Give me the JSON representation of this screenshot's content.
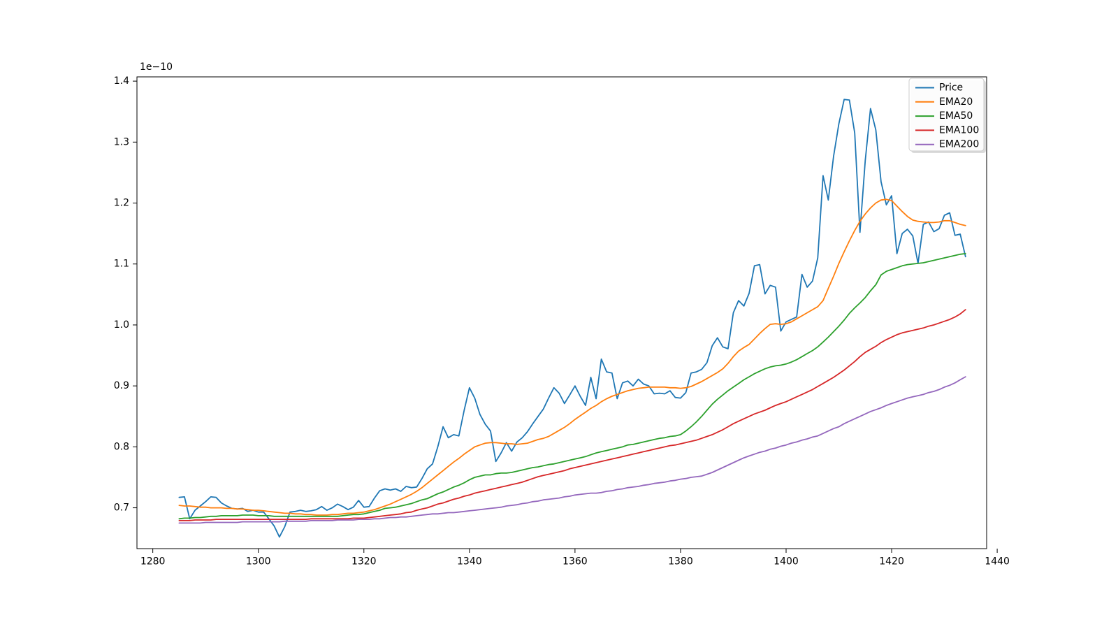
{
  "figure": {
    "background": "#ffffff"
  },
  "chart_data": {
    "type": "line",
    "title": "",
    "xlabel": "",
    "ylabel": "",
    "y_offset_label": "1e−10",
    "grid": false,
    "legend_position": "upper right",
    "legend_labels": [
      "Price",
      "EMA20",
      "EMA50",
      "EMA100",
      "EMA200"
    ],
    "xlim": [
      1277,
      1438
    ],
    "ylim": [
      0.633,
      1.407
    ],
    "x_ticks": [
      1280,
      1300,
      1320,
      1340,
      1360,
      1380,
      1400,
      1420,
      1440
    ],
    "y_ticks": [
      0.7,
      0.8,
      0.9,
      1.0,
      1.1,
      1.2,
      1.3,
      1.4
    ],
    "x": [
      1285,
      1286,
      1287,
      1288,
      1289,
      1290,
      1291,
      1292,
      1293,
      1294,
      1295,
      1296,
      1297,
      1298,
      1299,
      1300,
      1301,
      1302,
      1303,
      1304,
      1305,
      1306,
      1307,
      1308,
      1309,
      1310,
      1311,
      1312,
      1313,
      1314,
      1315,
      1316,
      1317,
      1318,
      1319,
      1320,
      1321,
      1322,
      1323,
      1324,
      1325,
      1326,
      1327,
      1328,
      1329,
      1330,
      1331,
      1332,
      1333,
      1334,
      1335,
      1336,
      1337,
      1338,
      1339,
      1340,
      1341,
      1342,
      1343,
      1344,
      1345,
      1346,
      1347,
      1348,
      1349,
      1350,
      1351,
      1352,
      1353,
      1354,
      1355,
      1356,
      1357,
      1358,
      1359,
      1360,
      1361,
      1362,
      1363,
      1364,
      1365,
      1366,
      1367,
      1368,
      1369,
      1370,
      1371,
      1372,
      1373,
      1374,
      1375,
      1376,
      1377,
      1378,
      1379,
      1380,
      1381,
      1382,
      1383,
      1384,
      1385,
      1386,
      1387,
      1388,
      1389,
      1390,
      1391,
      1392,
      1393,
      1394,
      1395,
      1396,
      1397,
      1398,
      1399,
      1400,
      1401,
      1402,
      1403,
      1404,
      1405,
      1406,
      1407,
      1408,
      1409,
      1410,
      1411,
      1412,
      1413,
      1414,
      1415,
      1416,
      1417,
      1418,
      1419,
      1420,
      1421,
      1422,
      1423,
      1424,
      1425,
      1426,
      1427,
      1428,
      1429,
      1430,
      1431,
      1432,
      1433,
      1434
    ],
    "series": [
      {
        "name": "Price",
        "color": "#1f77b4",
        "values": [
          0.717,
          0.718,
          0.682,
          0.696,
          0.703,
          0.71,
          0.718,
          0.717,
          0.708,
          0.703,
          0.699,
          0.698,
          0.699,
          0.694,
          0.696,
          0.693,
          0.693,
          0.682,
          0.67,
          0.652,
          0.669,
          0.693,
          0.694,
          0.696,
          0.694,
          0.695,
          0.697,
          0.702,
          0.696,
          0.7,
          0.706,
          0.702,
          0.697,
          0.701,
          0.712,
          0.701,
          0.702,
          0.716,
          0.728,
          0.731,
          0.729,
          0.731,
          0.727,
          0.735,
          0.733,
          0.734,
          0.748,
          0.764,
          0.772,
          0.8,
          0.833,
          0.815,
          0.82,
          0.818,
          0.86,
          0.897,
          0.88,
          0.853,
          0.837,
          0.826,
          0.776,
          0.79,
          0.807,
          0.793,
          0.808,
          0.815,
          0.825,
          0.838,
          0.85,
          0.862,
          0.88,
          0.897,
          0.888,
          0.871,
          0.885,
          0.9,
          0.883,
          0.868,
          0.914,
          0.879,
          0.944,
          0.923,
          0.921,
          0.879,
          0.905,
          0.908,
          0.9,
          0.911,
          0.903,
          0.9,
          0.887,
          0.888,
          0.887,
          0.892,
          0.881,
          0.88,
          0.889,
          0.921,
          0.923,
          0.927,
          0.938,
          0.966,
          0.979,
          0.964,
          0.961,
          1.02,
          1.04,
          1.031,
          1.052,
          1.097,
          1.099,
          1.051,
          1.065,
          1.062,
          0.99,
          1.005,
          1.009,
          1.013,
          1.083,
          1.062,
          1.072,
          1.11,
          1.245,
          1.205,
          1.277,
          1.33,
          1.37,
          1.369,
          1.315,
          1.152,
          1.27,
          1.355,
          1.32,
          1.235,
          1.197,
          1.212,
          1.117,
          1.15,
          1.157,
          1.146,
          1.101,
          1.165,
          1.169,
          1.153,
          1.158,
          1.18,
          1.184,
          1.147,
          1.149,
          1.112
        ]
      },
      {
        "name": "EMA20",
        "color": "#ff7f0e",
        "values": [
          0.704,
          0.703,
          0.703,
          0.702,
          0.701,
          0.701,
          0.7,
          0.7,
          0.7,
          0.699,
          0.699,
          0.698,
          0.698,
          0.697,
          0.696,
          0.696,
          0.695,
          0.694,
          0.693,
          0.692,
          0.691,
          0.691,
          0.69,
          0.69,
          0.689,
          0.689,
          0.688,
          0.688,
          0.688,
          0.689,
          0.689,
          0.69,
          0.691,
          0.691,
          0.692,
          0.693,
          0.695,
          0.697,
          0.7,
          0.703,
          0.706,
          0.71,
          0.714,
          0.718,
          0.722,
          0.727,
          0.733,
          0.74,
          0.747,
          0.754,
          0.761,
          0.768,
          0.775,
          0.781,
          0.788,
          0.794,
          0.8,
          0.803,
          0.806,
          0.807,
          0.807,
          0.806,
          0.805,
          0.805,
          0.804,
          0.805,
          0.806,
          0.809,
          0.812,
          0.814,
          0.817,
          0.822,
          0.827,
          0.832,
          0.838,
          0.845,
          0.851,
          0.857,
          0.863,
          0.868,
          0.874,
          0.879,
          0.883,
          0.886,
          0.889,
          0.892,
          0.894,
          0.896,
          0.897,
          0.898,
          0.898,
          0.898,
          0.898,
          0.897,
          0.897,
          0.896,
          0.897,
          0.899,
          0.903,
          0.907,
          0.912,
          0.917,
          0.922,
          0.928,
          0.937,
          0.948,
          0.957,
          0.963,
          0.968,
          0.977,
          0.986,
          0.994,
          1.001,
          1.002,
          1.001,
          1.002,
          1.005,
          1.01,
          1.015,
          1.02,
          1.025,
          1.03,
          1.04,
          1.06,
          1.08,
          1.101,
          1.12,
          1.138,
          1.155,
          1.17,
          1.182,
          1.192,
          1.2,
          1.205,
          1.206,
          1.204,
          1.195,
          1.186,
          1.178,
          1.172,
          1.17,
          1.169,
          1.168,
          1.168,
          1.169,
          1.171,
          1.171,
          1.168,
          1.165,
          1.163
        ]
      },
      {
        "name": "EMA50",
        "color": "#2ca02c",
        "values": [
          0.682,
          0.683,
          0.683,
          0.684,
          0.684,
          0.685,
          0.686,
          0.686,
          0.687,
          0.687,
          0.687,
          0.687,
          0.688,
          0.688,
          0.688,
          0.687,
          0.687,
          0.687,
          0.686,
          0.686,
          0.686,
          0.686,
          0.686,
          0.686,
          0.686,
          0.686,
          0.686,
          0.686,
          0.686,
          0.686,
          0.686,
          0.687,
          0.688,
          0.689,
          0.689,
          0.69,
          0.692,
          0.694,
          0.696,
          0.699,
          0.7,
          0.701,
          0.703,
          0.705,
          0.707,
          0.71,
          0.713,
          0.715,
          0.719,
          0.723,
          0.726,
          0.73,
          0.734,
          0.737,
          0.741,
          0.746,
          0.75,
          0.752,
          0.754,
          0.754,
          0.756,
          0.757,
          0.757,
          0.758,
          0.76,
          0.762,
          0.764,
          0.766,
          0.767,
          0.769,
          0.771,
          0.772,
          0.774,
          0.776,
          0.778,
          0.78,
          0.782,
          0.784,
          0.787,
          0.79,
          0.792,
          0.794,
          0.796,
          0.798,
          0.8,
          0.803,
          0.804,
          0.806,
          0.808,
          0.81,
          0.812,
          0.814,
          0.815,
          0.817,
          0.818,
          0.82,
          0.826,
          0.833,
          0.841,
          0.85,
          0.86,
          0.87,
          0.878,
          0.885,
          0.892,
          0.898,
          0.904,
          0.91,
          0.915,
          0.92,
          0.924,
          0.928,
          0.931,
          0.933,
          0.934,
          0.936,
          0.939,
          0.943,
          0.948,
          0.953,
          0.958,
          0.964,
          0.972,
          0.98,
          0.989,
          0.998,
          1.008,
          1.019,
          1.028,
          1.036,
          1.045,
          1.056,
          1.066,
          1.082,
          1.088,
          1.091,
          1.094,
          1.097,
          1.099,
          1.1,
          1.101,
          1.102,
          1.104,
          1.106,
          1.108,
          1.11,
          1.112,
          1.114,
          1.116,
          1.117
        ]
      },
      {
        "name": "EMA100",
        "color": "#d62728",
        "values": [
          0.679,
          0.679,
          0.679,
          0.68,
          0.68,
          0.68,
          0.68,
          0.681,
          0.681,
          0.681,
          0.681,
          0.681,
          0.681,
          0.681,
          0.681,
          0.681,
          0.681,
          0.681,
          0.681,
          0.681,
          0.681,
          0.681,
          0.681,
          0.681,
          0.681,
          0.682,
          0.682,
          0.682,
          0.682,
          0.682,
          0.682,
          0.682,
          0.682,
          0.683,
          0.683,
          0.683,
          0.684,
          0.685,
          0.686,
          0.687,
          0.688,
          0.689,
          0.69,
          0.692,
          0.693,
          0.696,
          0.698,
          0.7,
          0.703,
          0.706,
          0.708,
          0.711,
          0.714,
          0.716,
          0.719,
          0.721,
          0.724,
          0.726,
          0.728,
          0.73,
          0.732,
          0.734,
          0.736,
          0.738,
          0.74,
          0.742,
          0.745,
          0.748,
          0.751,
          0.753,
          0.755,
          0.757,
          0.759,
          0.761,
          0.764,
          0.766,
          0.768,
          0.77,
          0.772,
          0.774,
          0.776,
          0.778,
          0.78,
          0.782,
          0.784,
          0.786,
          0.788,
          0.79,
          0.792,
          0.794,
          0.796,
          0.798,
          0.8,
          0.802,
          0.803,
          0.805,
          0.807,
          0.809,
          0.811,
          0.814,
          0.817,
          0.82,
          0.824,
          0.828,
          0.833,
          0.838,
          0.842,
          0.846,
          0.85,
          0.854,
          0.857,
          0.86,
          0.864,
          0.868,
          0.871,
          0.874,
          0.878,
          0.882,
          0.886,
          0.89,
          0.894,
          0.899,
          0.904,
          0.909,
          0.914,
          0.92,
          0.926,
          0.933,
          0.94,
          0.948,
          0.955,
          0.96,
          0.965,
          0.971,
          0.976,
          0.98,
          0.984,
          0.987,
          0.989,
          0.991,
          0.993,
          0.995,
          0.998,
          1.0,
          1.003,
          1.006,
          1.009,
          1.013,
          1.018,
          1.025
        ]
      },
      {
        "name": "EMA200",
        "color": "#9467bd",
        "values": [
          0.675,
          0.675,
          0.675,
          0.675,
          0.675,
          0.676,
          0.676,
          0.676,
          0.676,
          0.676,
          0.676,
          0.676,
          0.677,
          0.677,
          0.677,
          0.677,
          0.677,
          0.677,
          0.677,
          0.677,
          0.678,
          0.678,
          0.678,
          0.678,
          0.678,
          0.679,
          0.679,
          0.679,
          0.679,
          0.679,
          0.68,
          0.68,
          0.68,
          0.68,
          0.681,
          0.681,
          0.681,
          0.682,
          0.682,
          0.683,
          0.684,
          0.684,
          0.685,
          0.685,
          0.686,
          0.687,
          0.688,
          0.689,
          0.69,
          0.69,
          0.691,
          0.692,
          0.692,
          0.693,
          0.694,
          0.695,
          0.696,
          0.697,
          0.698,
          0.699,
          0.7,
          0.701,
          0.703,
          0.704,
          0.705,
          0.707,
          0.708,
          0.71,
          0.711,
          0.713,
          0.714,
          0.715,
          0.716,
          0.718,
          0.719,
          0.721,
          0.722,
          0.723,
          0.724,
          0.724,
          0.725,
          0.727,
          0.728,
          0.73,
          0.731,
          0.733,
          0.734,
          0.735,
          0.737,
          0.738,
          0.74,
          0.741,
          0.742,
          0.744,
          0.745,
          0.747,
          0.748,
          0.75,
          0.751,
          0.752,
          0.755,
          0.758,
          0.762,
          0.766,
          0.77,
          0.774,
          0.778,
          0.782,
          0.785,
          0.788,
          0.791,
          0.793,
          0.796,
          0.798,
          0.801,
          0.803,
          0.806,
          0.808,
          0.811,
          0.813,
          0.816,
          0.818,
          0.822,
          0.826,
          0.83,
          0.833,
          0.838,
          0.842,
          0.846,
          0.85,
          0.854,
          0.858,
          0.861,
          0.864,
          0.868,
          0.871,
          0.874,
          0.877,
          0.88,
          0.882,
          0.884,
          0.886,
          0.889,
          0.891,
          0.894,
          0.898,
          0.901,
          0.905,
          0.91,
          0.915
        ]
      }
    ]
  }
}
